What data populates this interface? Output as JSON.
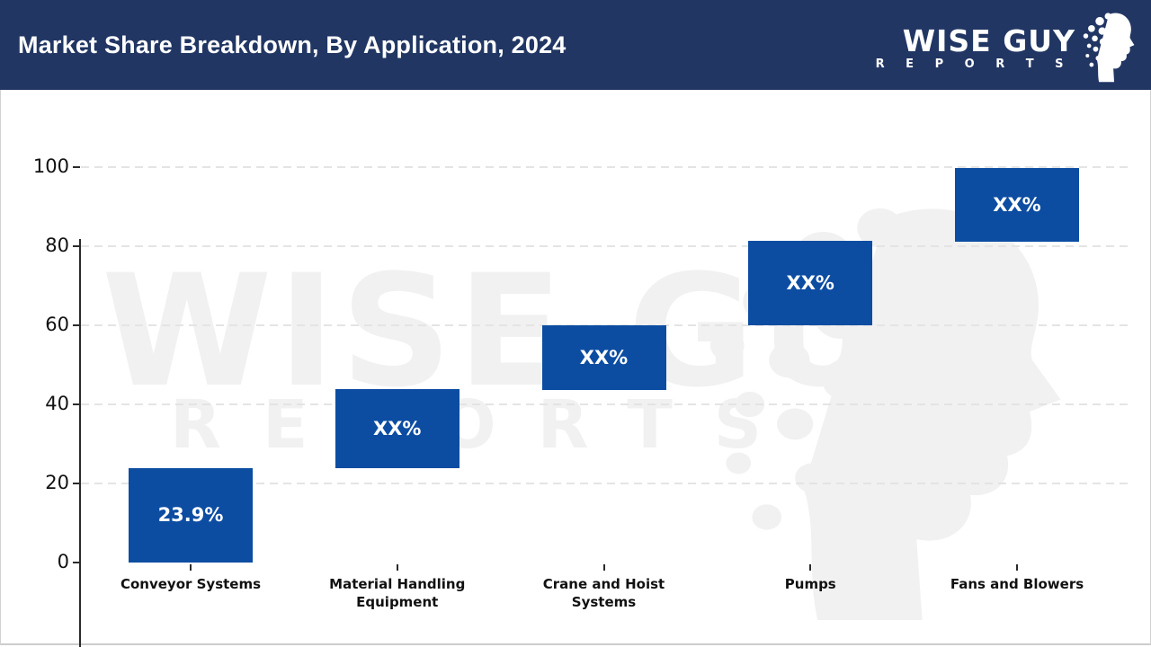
{
  "header": {
    "title": "Market Share Breakdown, By Application, 2024",
    "bg_color": "#213663",
    "logo": {
      "line1": "WISE GUY",
      "line2": "R E P O R T S",
      "face_icon": "dotted-head-profile"
    }
  },
  "watermark": {
    "line1": "WISE GUY",
    "line2": "REPORTS",
    "face_icon": "dotted-head-profile"
  },
  "chart_data": {
    "type": "bar",
    "subtype": "waterfall",
    "title": "Market Share Breakdown, By Application, 2024",
    "xlabel": "",
    "ylabel": "",
    "ylim": [
      0,
      105
    ],
    "yticks": [
      0,
      20,
      40,
      60,
      80,
      100
    ],
    "grid": "horizontal-dashed",
    "legend": "none",
    "bar_color": "#0C4DA2",
    "label_color": "#ffffff",
    "categories": [
      "Conveyor Systems",
      "Material Handling Equipment",
      "Crane and Hoist Systems",
      "Pumps",
      "Fans and Blowers"
    ],
    "category_lines": [
      [
        "Conveyor Systems"
      ],
      [
        "Material Handling",
        "Equipment"
      ],
      [
        "Crane and Hoist",
        "Systems"
      ],
      [
        "Pumps"
      ],
      [
        "Fans and Blowers"
      ]
    ],
    "segments": [
      {
        "category": "Conveyor Systems",
        "start": 0,
        "end": 23.9,
        "value": 23.9,
        "label": "23.9%"
      },
      {
        "category": "Material Handling Equipment",
        "start": 23.9,
        "end": 43.9,
        "value": 20.0,
        "label": "XX%"
      },
      {
        "category": "Crane and Hoist Systems",
        "start": 43.6,
        "end": 60.0,
        "value": 16.4,
        "label": "XX%"
      },
      {
        "category": "Pumps",
        "start": 60.0,
        "end": 81.4,
        "value": 21.4,
        "label": "XX%"
      },
      {
        "category": "Fans and Blowers",
        "start": 81.1,
        "end": 99.8,
        "value": 18.7,
        "label": "XX%"
      }
    ]
  }
}
